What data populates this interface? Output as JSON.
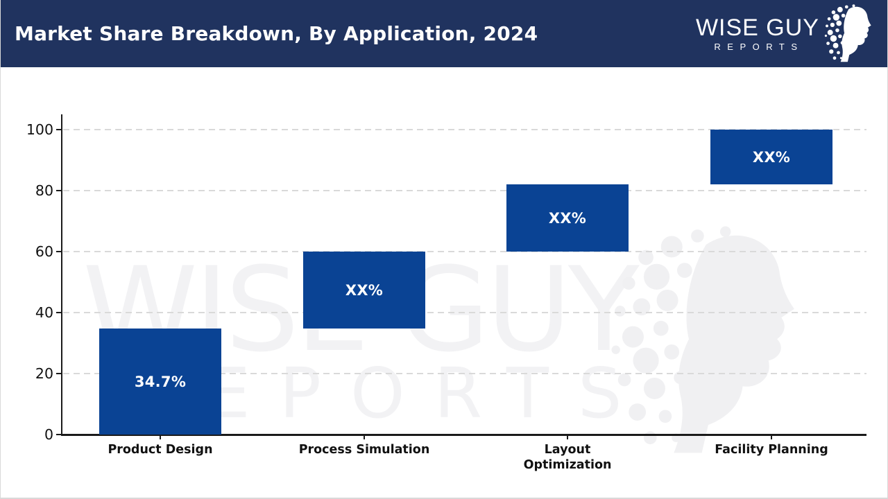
{
  "header": {
    "title": "Market Share Breakdown, By Application, 2024",
    "logo": {
      "line1": "WISE GUY",
      "line2": "REPORTS"
    }
  },
  "watermark": {
    "line1": "WISE GUY",
    "line2": "REPORTS"
  },
  "chart_data": {
    "type": "bar",
    "subtype": "waterfall",
    "title": "Market Share Breakdown, By Application, 2024",
    "categories": [
      "Product Design",
      "Process Simulation",
      "Layout\nOptimization",
      "Facility Planning"
    ],
    "series": [
      {
        "name": "Market Share",
        "segments": [
          {
            "start": 0,
            "end": 34.7
          },
          {
            "start": 34.7,
            "end": 60
          },
          {
            "start": 60,
            "end": 82
          },
          {
            "start": 82,
            "end": 100
          }
        ]
      }
    ],
    "bar_labels": [
      "34.7%",
      "XX%",
      "XX%",
      "XX%"
    ],
    "yticks": [
      0,
      20,
      40,
      60,
      80,
      100
    ],
    "ylim": [
      0,
      105
    ],
    "xlabel": "",
    "ylabel": "",
    "grid": true,
    "grid_style": "dashed",
    "legend": false,
    "bar_color": "#0a4394",
    "grid_color": "#d9d9d9",
    "axis_color": "#1a1a1a"
  },
  "colors": {
    "header_bg": "#20335f",
    "bar": "#0a4394",
    "watermark": "#f2f2f4",
    "page_border": "#d9d9d9",
    "text_on_dark": "#ffffff",
    "text_on_light": "#111111"
  }
}
